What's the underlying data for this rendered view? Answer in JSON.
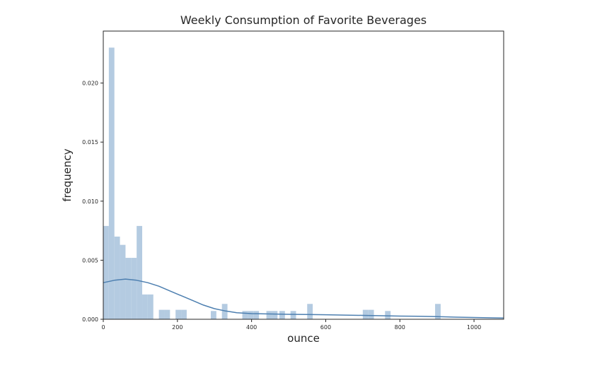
{
  "chart_data": {
    "type": "histogram",
    "title": "Weekly Consumption of Favorite Beverages",
    "xlabel": "ounce",
    "ylabel": "frequency",
    "xlim": [
      0,
      1080
    ],
    "ylim": [
      0,
      0.0244
    ],
    "xticks": [
      0,
      200,
      400,
      600,
      800,
      1000
    ],
    "yticks": [
      0.0,
      0.005,
      0.01,
      0.015,
      0.02
    ],
    "ytick_decimals": 3,
    "grid": false,
    "legend": "none",
    "bar_color": "#b4cbe1",
    "line_color": "#4d7fb0",
    "bin_width": 15,
    "bars": [
      {
        "x": 0,
        "h": 0.0079
      },
      {
        "x": 15,
        "h": 0.023
      },
      {
        "x": 30,
        "h": 0.007
      },
      {
        "x": 45,
        "h": 0.0063
      },
      {
        "x": 60,
        "h": 0.0052
      },
      {
        "x": 75,
        "h": 0.0052
      },
      {
        "x": 90,
        "h": 0.0079
      },
      {
        "x": 105,
        "h": 0.0021
      },
      {
        "x": 120,
        "h": 0.0021
      },
      {
        "x": 150,
        "h": 0.0008
      },
      {
        "x": 165,
        "h": 0.0008
      },
      {
        "x": 195,
        "h": 0.0008
      },
      {
        "x": 210,
        "h": 0.0008
      },
      {
        "x": 290,
        "h": 0.0007
      },
      {
        "x": 320,
        "h": 0.0013
      },
      {
        "x": 375,
        "h": 0.0007
      },
      {
        "x": 390,
        "h": 0.0007
      },
      {
        "x": 405,
        "h": 0.0007
      },
      {
        "x": 440,
        "h": 0.0007
      },
      {
        "x": 455,
        "h": 0.0007
      },
      {
        "x": 475,
        "h": 0.0007
      },
      {
        "x": 505,
        "h": 0.0007
      },
      {
        "x": 550,
        "h": 0.0013
      },
      {
        "x": 700,
        "h": 0.0008
      },
      {
        "x": 715,
        "h": 0.0008
      },
      {
        "x": 760,
        "h": 0.0007
      },
      {
        "x": 895,
        "h": 0.0013
      }
    ],
    "kde": [
      [
        0,
        0.0031
      ],
      [
        30,
        0.0033
      ],
      [
        60,
        0.0034
      ],
      [
        90,
        0.0033
      ],
      [
        120,
        0.0031
      ],
      [
        150,
        0.0028
      ],
      [
        180,
        0.0024
      ],
      [
        210,
        0.002
      ],
      [
        240,
        0.0016
      ],
      [
        270,
        0.0012
      ],
      [
        300,
        0.0009
      ],
      [
        330,
        0.0007
      ],
      [
        360,
        0.00055
      ],
      [
        400,
        0.00048
      ],
      [
        450,
        0.00045
      ],
      [
        500,
        0.00042
      ],
      [
        550,
        0.0004
      ],
      [
        600,
        0.00038
      ],
      [
        650,
        0.00035
      ],
      [
        700,
        0.00033
      ],
      [
        750,
        0.0003
      ],
      [
        800,
        0.00027
      ],
      [
        850,
        0.00025
      ],
      [
        900,
        0.00022
      ],
      [
        950,
        0.00018
      ],
      [
        1000,
        0.00015
      ],
      [
        1050,
        0.00012
      ],
      [
        1080,
        0.0001
      ]
    ]
  }
}
